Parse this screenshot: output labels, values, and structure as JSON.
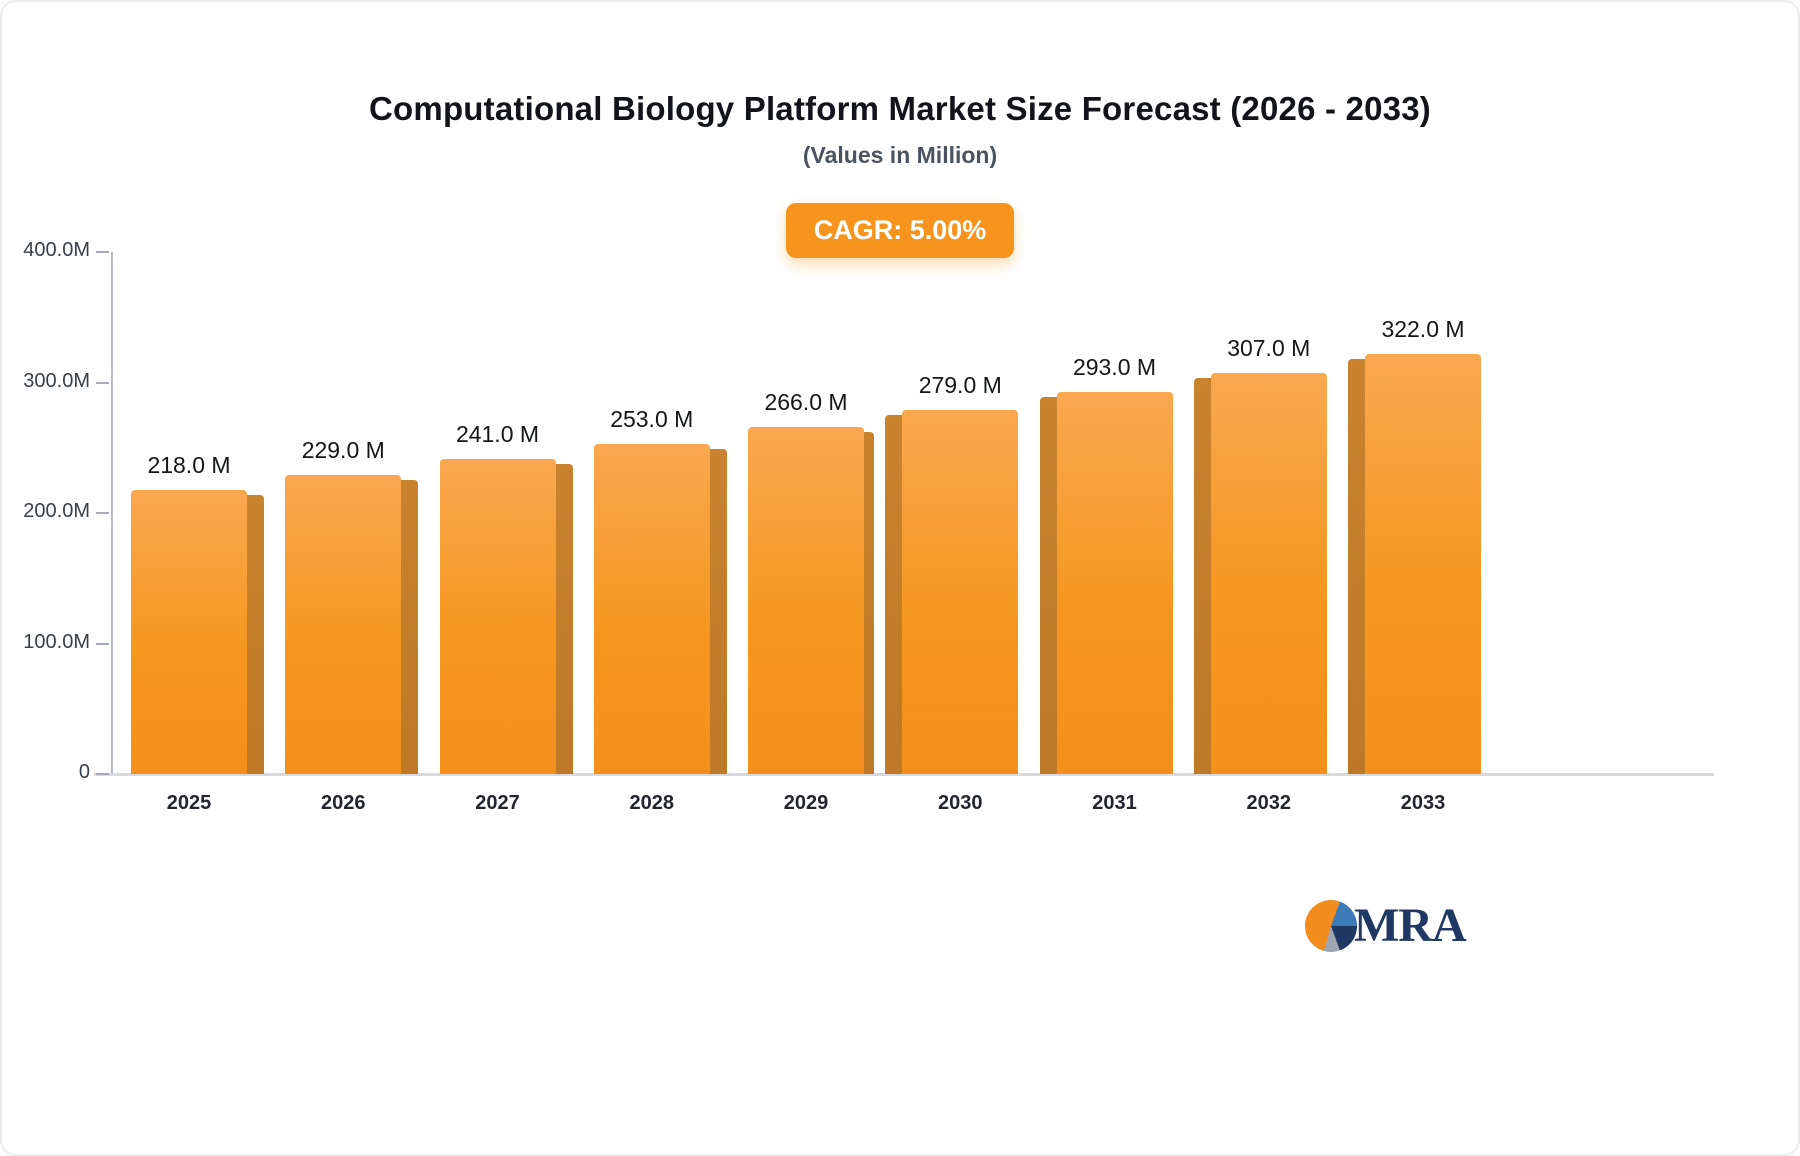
{
  "chart": {
    "title": "Computational Biology Platform Market Size Forecast (2026 - 2033)",
    "subtitle": "(Values in Million)",
    "cagr_label": "CAGR: 5.00%",
    "logo_text": "MRA"
  },
  "chart_data": {
    "type": "bar",
    "title": "Computational Biology Platform Market Size Forecast (2026 - 2033)",
    "subtitle": "(Values in Million)",
    "xlabel": "",
    "ylabel": "",
    "categories": [
      "2025",
      "2026",
      "2027",
      "2028",
      "2029",
      "2030",
      "2031",
      "2032",
      "2033"
    ],
    "values": [
      218,
      229,
      241,
      253,
      266,
      279,
      293,
      307,
      322
    ],
    "value_labels": [
      "218.0 M",
      "229.0 M",
      "241.0 M",
      "253.0 M",
      "266.0 M",
      "279.0 M",
      "293.0 M",
      "307.0 M",
      "322.0 M"
    ],
    "ylim": [
      0,
      400
    ],
    "y_ticks": [
      {
        "value": 400,
        "label": "400.0M"
      },
      {
        "value": 300,
        "label": "300.0M"
      },
      {
        "value": 200,
        "label": "200.0M"
      },
      {
        "value": 100,
        "label": "100.0M"
      },
      {
        "value": 0,
        "label": "0"
      }
    ],
    "grid": false,
    "legend": "none",
    "annotations": [
      "CAGR: 5.00%"
    ],
    "bar_color_top": "#F9A850",
    "bar_color_bottom": "#F58F1C",
    "bar_side_color": "#C9832F",
    "accent_color": "#F7941E"
  }
}
